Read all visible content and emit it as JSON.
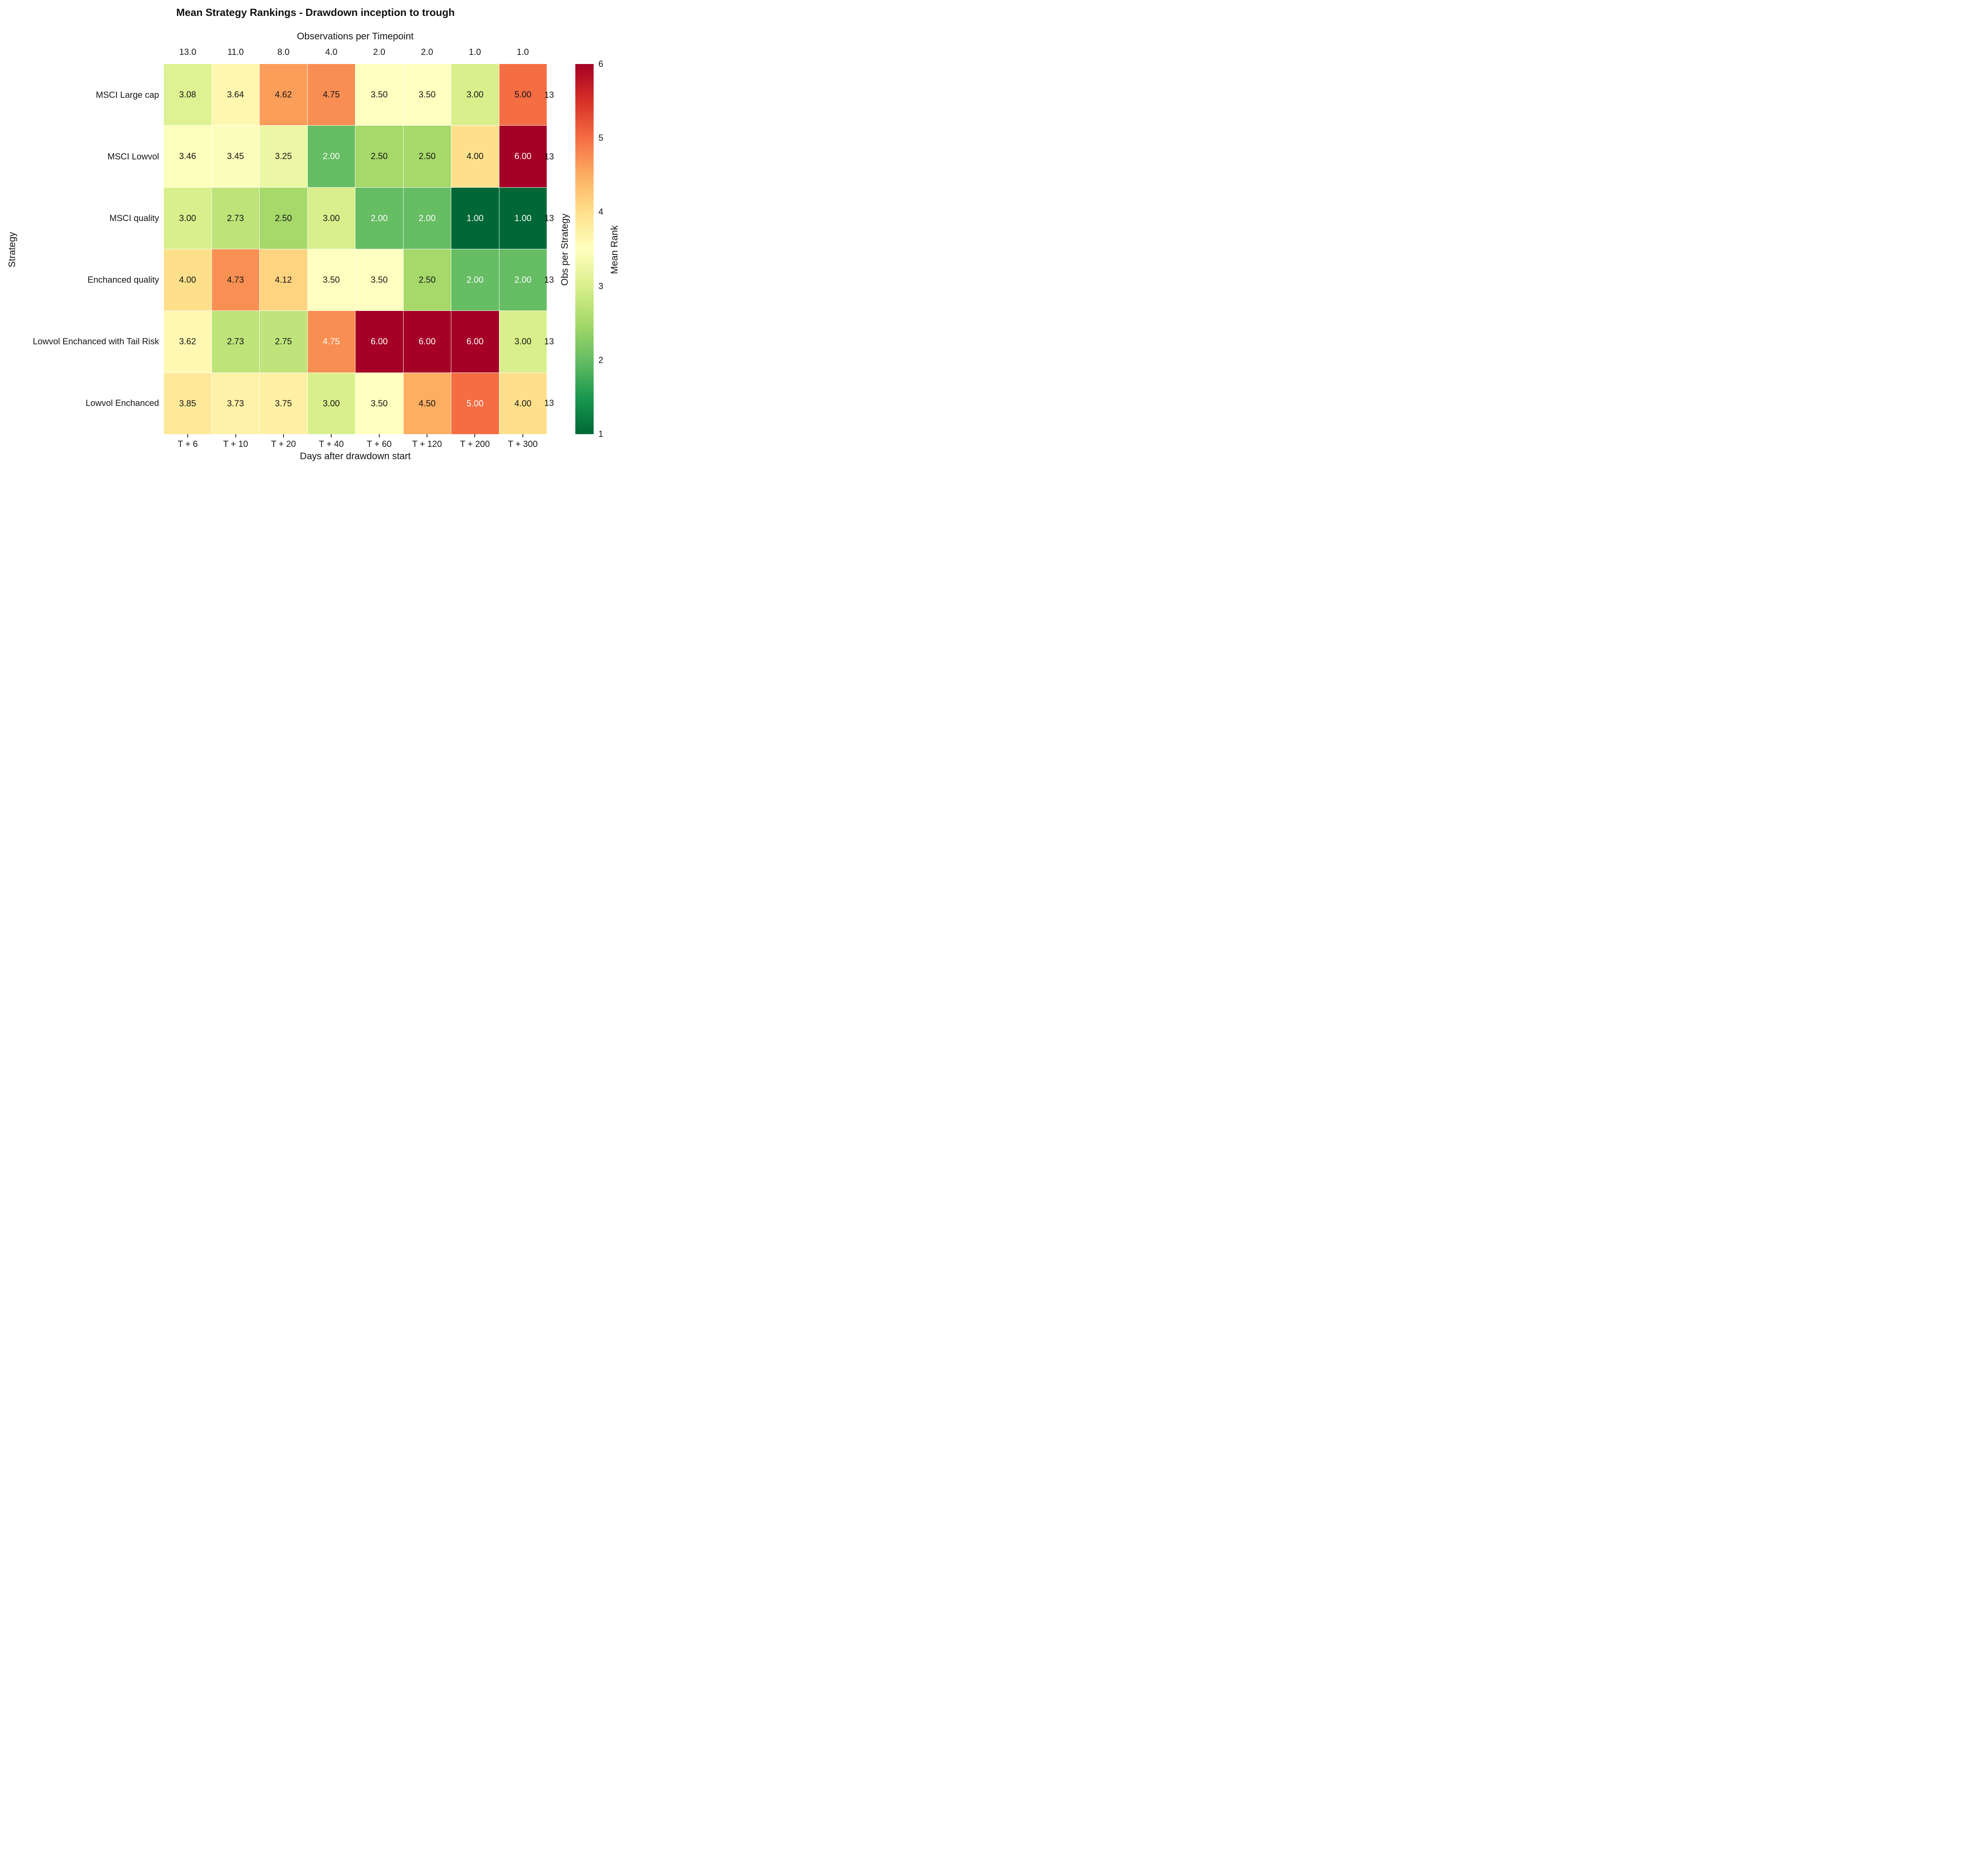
{
  "title": "Mean Strategy Rankings - Drawdown inception to trough",
  "top_axis": {
    "label": "Observations per Timepoint",
    "ticks": [
      "13.0",
      "11.0",
      "8.0",
      "4.0",
      "2.0",
      "2.0",
      "1.0",
      "1.0"
    ]
  },
  "bottom_axis": {
    "label": "Days after drawdown start",
    "ticks": [
      "T + 6",
      "T + 10",
      "T + 20",
      "T + 40",
      "T + 60",
      "T + 120",
      "T + 200",
      "T + 300"
    ]
  },
  "left_axis": {
    "label": "Strategy",
    "row_labels": [
      "MSCI Large cap",
      "MSCI Lowvol",
      "MSCI quality",
      "Enchanced quality",
      "Lowvol Enchanced with Tail Risk",
      "Lowvol Enchanced"
    ]
  },
  "right_axis": {
    "label": "Obs per Strategy",
    "row_counts": [
      "13",
      "13",
      "13",
      "13",
      "13",
      "13"
    ]
  },
  "colorbar": {
    "label": "Mean Rank",
    "tick_labels": [
      "6",
      "5",
      "4",
      "3",
      "2",
      "1"
    ],
    "tick_values": [
      6,
      5,
      4,
      3,
      2,
      1
    ],
    "vmin": 1,
    "vmax": 6
  },
  "colors": {
    "colormap_name": "RdYlGn_r",
    "anchors": [
      "#006837",
      "#1a9850",
      "#66bd63",
      "#a6d96a",
      "#d9ef8b",
      "#ffffbf",
      "#fee08b",
      "#fdae61",
      "#f46d43",
      "#d73027",
      "#a50026"
    ],
    "annot_black": "#151515",
    "annot_white": "#ffffff",
    "background": "#ffffff"
  },
  "chart_data": {
    "type": "heatmap",
    "title": "Mean Strategy Rankings - Drawdown inception to trough",
    "rows": [
      "MSCI Large cap",
      "MSCI Lowvol",
      "MSCI quality",
      "Enchanced quality",
      "Lowvol Enchanced with Tail Risk",
      "Lowvol Enchanced"
    ],
    "columns": [
      "T + 6",
      "T + 10",
      "T + 20",
      "T + 40",
      "T + 60",
      "T + 120",
      "T + 200",
      "T + 300"
    ],
    "observations_per_timepoint": [
      13.0,
      11.0,
      8.0,
      4.0,
      2.0,
      2.0,
      1.0,
      1.0
    ],
    "obs_per_strategy": [
      13,
      13,
      13,
      13,
      13,
      13
    ],
    "values": [
      [
        3.08,
        3.64,
        4.62,
        4.75,
        3.5,
        3.5,
        3.0,
        5.0
      ],
      [
        3.46,
        3.45,
        3.25,
        2.0,
        2.5,
        2.5,
        4.0,
        6.0
      ],
      [
        3.0,
        2.73,
        2.5,
        3.0,
        2.0,
        2.0,
        1.0,
        1.0
      ],
      [
        4.0,
        4.73,
        4.12,
        3.5,
        3.5,
        2.5,
        2.0,
        2.0
      ],
      [
        3.62,
        2.73,
        2.75,
        4.75,
        6.0,
        6.0,
        6.0,
        3.0
      ],
      [
        3.85,
        3.73,
        3.75,
        3.0,
        3.5,
        4.5,
        5.0,
        4.0
      ]
    ],
    "annot_text_colors": [
      [
        "b",
        "b",
        "b",
        "b",
        "b",
        "b",
        "b",
        "b"
      ],
      [
        "b",
        "b",
        "b",
        "w",
        "b",
        "b",
        "b",
        "w"
      ],
      [
        "b",
        "b",
        "b",
        "b",
        "w",
        "w",
        "w",
        "w"
      ],
      [
        "b",
        "b",
        "b",
        "b",
        "b",
        "b",
        "w",
        "w"
      ],
      [
        "b",
        "b",
        "b",
        "w",
        "w",
        "w",
        "w",
        "b"
      ],
      [
        "b",
        "b",
        "b",
        "b",
        "b",
        "b",
        "w",
        "b"
      ]
    ],
    "value_range": [
      1,
      6
    ],
    "xlabel": "Days after drawdown start",
    "ylabel": "Strategy",
    "colorbar_label": "Mean Rank",
    "legend_position": "right",
    "grid": false
  }
}
